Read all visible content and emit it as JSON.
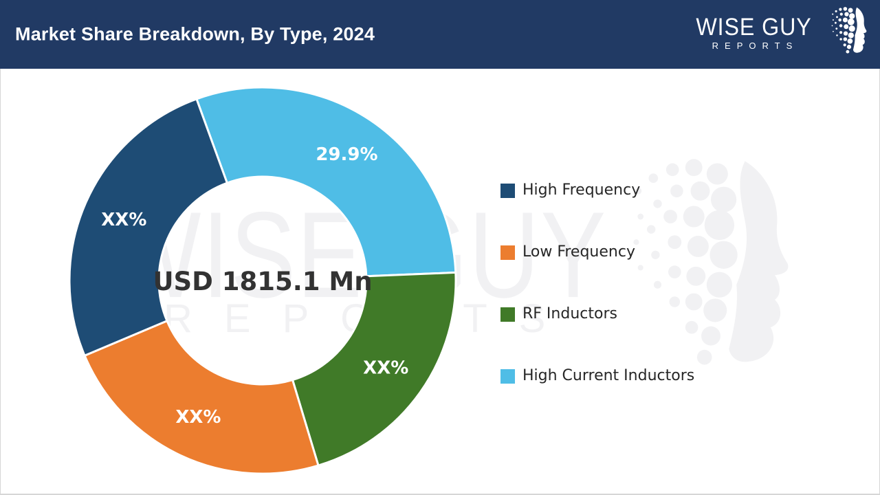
{
  "header": {
    "title": "Market Share Breakdown, By Type, 2024",
    "logo": {
      "brand": "WISE GUY",
      "sub": "REPORTS"
    }
  },
  "watermark": {
    "line1": "WISE GUY",
    "line2": "REPORTS"
  },
  "chart_data": {
    "type": "pie",
    "subtype": "donut",
    "title": "Market Share Breakdown, By Type, 2024",
    "center_label": "USD 1815.1 Mn",
    "start_angle_deg": -20,
    "direction": "clockwise",
    "legend_position": "right",
    "segments": [
      {
        "name": "High Current Inductors",
        "value": 29.9,
        "label": "29.9%",
        "color": "#4FBDE6"
      },
      {
        "name": "RF Inductors",
        "value": 21.0,
        "label": "XX%",
        "color": "#407A28"
      },
      {
        "name": "Low Frequency",
        "value": 23.3,
        "label": "XX%",
        "color": "#EC7D2F"
      },
      {
        "name": "High Frequency",
        "value": 25.8,
        "label": "XX%",
        "color": "#1E4C75"
      }
    ]
  },
  "legend": {
    "items": [
      {
        "label": "High Frequency",
        "color": "#1E4C75"
      },
      {
        "label": "Low Frequency",
        "color": "#EC7D2F"
      },
      {
        "label": "RF Inductors",
        "color": "#407A28"
      },
      {
        "label": "High Current Inductors",
        "color": "#4FBDE6"
      }
    ]
  },
  "colors": {
    "header_bg": "#213A64",
    "watermark": "#F1F1F3",
    "center_text": "#323232",
    "legend_text": "#262626",
    "slice_separator": "#FFFFFF"
  }
}
